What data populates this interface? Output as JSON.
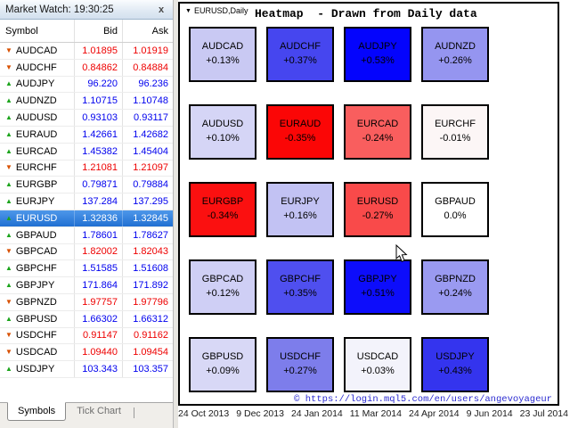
{
  "market_watch": {
    "title": "Market Watch: 19:30:25",
    "close_label": "x",
    "columns": {
      "symbol": "Symbol",
      "bid": "Bid",
      "ask": "Ask"
    },
    "rows": [
      {
        "symbol": "AUDCAD",
        "trend": "down",
        "bid": "1.01895",
        "ask": "1.01919",
        "selected": false
      },
      {
        "symbol": "AUDCHF",
        "trend": "down",
        "bid": "0.84862",
        "ask": "0.84884",
        "selected": false
      },
      {
        "symbol": "AUDJPY",
        "trend": "up",
        "bid": "96.220",
        "ask": "96.236",
        "selected": false
      },
      {
        "symbol": "AUDNZD",
        "trend": "up",
        "bid": "1.10715",
        "ask": "1.10748",
        "selected": false
      },
      {
        "symbol": "AUDUSD",
        "trend": "up",
        "bid": "0.93103",
        "ask": "0.93117",
        "selected": false
      },
      {
        "symbol": "EURAUD",
        "trend": "up",
        "bid": "1.42661",
        "ask": "1.42682",
        "selected": false
      },
      {
        "symbol": "EURCAD",
        "trend": "up",
        "bid": "1.45382",
        "ask": "1.45404",
        "selected": false
      },
      {
        "symbol": "EURCHF",
        "trend": "down",
        "bid": "1.21081",
        "ask": "1.21097",
        "selected": false
      },
      {
        "symbol": "EURGBP",
        "trend": "up",
        "bid": "0.79871",
        "ask": "0.79884",
        "selected": false
      },
      {
        "symbol": "EURJPY",
        "trend": "up",
        "bid": "137.284",
        "ask": "137.295",
        "selected": false
      },
      {
        "symbol": "EURUSD",
        "trend": "up",
        "bid": "1.32836",
        "ask": "1.32845",
        "selected": true
      },
      {
        "symbol": "GBPAUD",
        "trend": "up",
        "bid": "1.78601",
        "ask": "1.78627",
        "selected": false
      },
      {
        "symbol": "GBPCAD",
        "trend": "down",
        "bid": "1.82002",
        "ask": "1.82043",
        "selected": false
      },
      {
        "symbol": "GBPCHF",
        "trend": "up",
        "bid": "1.51585",
        "ask": "1.51608",
        "selected": false
      },
      {
        "symbol": "GBPJPY",
        "trend": "up",
        "bid": "171.864",
        "ask": "171.892",
        "selected": false
      },
      {
        "symbol": "GBPNZD",
        "trend": "down",
        "bid": "1.97757",
        "ask": "1.97796",
        "selected": false
      },
      {
        "symbol": "GBPUSD",
        "trend": "up",
        "bid": "1.66302",
        "ask": "1.66312",
        "selected": false
      },
      {
        "symbol": "USDCHF",
        "trend": "down",
        "bid": "0.91147",
        "ask": "0.91162",
        "selected": false
      },
      {
        "symbol": "USDCAD",
        "trend": "down",
        "bid": "1.09440",
        "ask": "1.09454",
        "selected": false
      },
      {
        "symbol": "USDJPY",
        "trend": "up",
        "bid": "103.343",
        "ask": "103.357",
        "selected": false
      }
    ],
    "tabs": [
      {
        "label": "Symbols",
        "active": true
      },
      {
        "label": "Tick Chart",
        "active": false
      }
    ]
  },
  "chart": {
    "instrument_label": "EURUSD,Daily",
    "credit": "© https://login.mql5.com/en/users/angevoyageur"
  },
  "chart_data": {
    "type": "heatmap",
    "title": "Heatmap  - Drawn from Daily data",
    "value_unit": "daily percent change",
    "columns": 4,
    "rows": 5,
    "tiles": [
      {
        "symbol": "AUDCAD",
        "change_pct": 0.13,
        "label": "+0.13%",
        "color": "#c9c9f3"
      },
      {
        "symbol": "AUDCHF",
        "change_pct": 0.37,
        "label": "+0.37%",
        "color": "#4646ef"
      },
      {
        "symbol": "AUDJPY",
        "change_pct": 0.53,
        "label": "+0.53%",
        "color": "#0404fd"
      },
      {
        "symbol": "AUDNZD",
        "change_pct": 0.26,
        "label": "+0.26%",
        "color": "#9595f0"
      },
      {
        "symbol": "AUDUSD",
        "change_pct": 0.1,
        "label": "+0.10%",
        "color": "#d5d5f6"
      },
      {
        "symbol": "EURAUD",
        "change_pct": -0.35,
        "label": "-0.35%",
        "color": "#fb0606"
      },
      {
        "symbol": "EURCAD",
        "change_pct": -0.24,
        "label": "-0.24%",
        "color": "#f95e5e"
      },
      {
        "symbol": "EURCHF",
        "change_pct": -0.01,
        "label": "-0.01%",
        "color": "#fcf6f6"
      },
      {
        "symbol": "EURGBP",
        "change_pct": -0.34,
        "label": "-0.34%",
        "color": "#fb1010"
      },
      {
        "symbol": "EURJPY",
        "change_pct": 0.16,
        "label": "+0.16%",
        "color": "#c2c2f3"
      },
      {
        "symbol": "EURUSD",
        "change_pct": -0.27,
        "label": "-0.27%",
        "color": "#f94a4a"
      },
      {
        "symbol": "GBPAUD",
        "change_pct": 0.0,
        "label": "0.0%",
        "color": "#ffffff"
      },
      {
        "symbol": "GBPCAD",
        "change_pct": 0.12,
        "label": "+0.12%",
        "color": "#cfcff5"
      },
      {
        "symbol": "GBPCHF",
        "change_pct": 0.35,
        "label": "+0.35%",
        "color": "#4f4fef"
      },
      {
        "symbol": "GBPJPY",
        "change_pct": 0.51,
        "label": "+0.51%",
        "color": "#0d0dfb"
      },
      {
        "symbol": "GBPNZD",
        "change_pct": 0.24,
        "label": "+0.24%",
        "color": "#9a9af1"
      },
      {
        "symbol": "GBPUSD",
        "change_pct": 0.09,
        "label": "+0.09%",
        "color": "#d8d8f6"
      },
      {
        "symbol": "USDCHF",
        "change_pct": 0.27,
        "label": "+0.27%",
        "color": "#7d7deb"
      },
      {
        "symbol": "USDCAD",
        "change_pct": 0.03,
        "label": "+0.03%",
        "color": "#f3f3fb"
      },
      {
        "symbol": "USDJPY",
        "change_pct": 0.43,
        "label": "+0.43%",
        "color": "#3434ee"
      }
    ],
    "x_axis_labels": [
      "24 Oct 2013",
      "9 Dec 2013",
      "24 Jan 2014",
      "11 Mar 2014",
      "24 Apr 2014",
      "9 Jun 2014",
      "23 Jul 2014"
    ]
  },
  "colors": {
    "price_up": "#0000ee",
    "price_down": "#ee0000",
    "arrow_up": "#1ca41c",
    "arrow_down": "#d85000",
    "selected_row": "#2e7fdc"
  }
}
